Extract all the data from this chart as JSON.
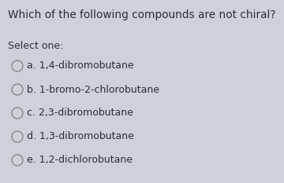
{
  "background_color": "#cdd1db",
  "title": "Which of the following compounds are not chiral?",
  "title_fontsize": 9.8,
  "title_color": "#2a2e3a",
  "select_label": "Select one:",
  "select_fontsize": 9.0,
  "options": [
    "a. 1,4-dibromobutane",
    "b. 1-bromo-2-chlorobutane",
    "c. 2,3-dibromobutane",
    "d. 1,3-dibromobutane",
    "e. 1,2-dichlorobutane"
  ],
  "option_fontsize": 9.0,
  "option_color": "#2a2e3a",
  "circle_edge_color": "#888888",
  "circle_face_color": "#cdd1db",
  "circle_linewidth": 1.0
}
